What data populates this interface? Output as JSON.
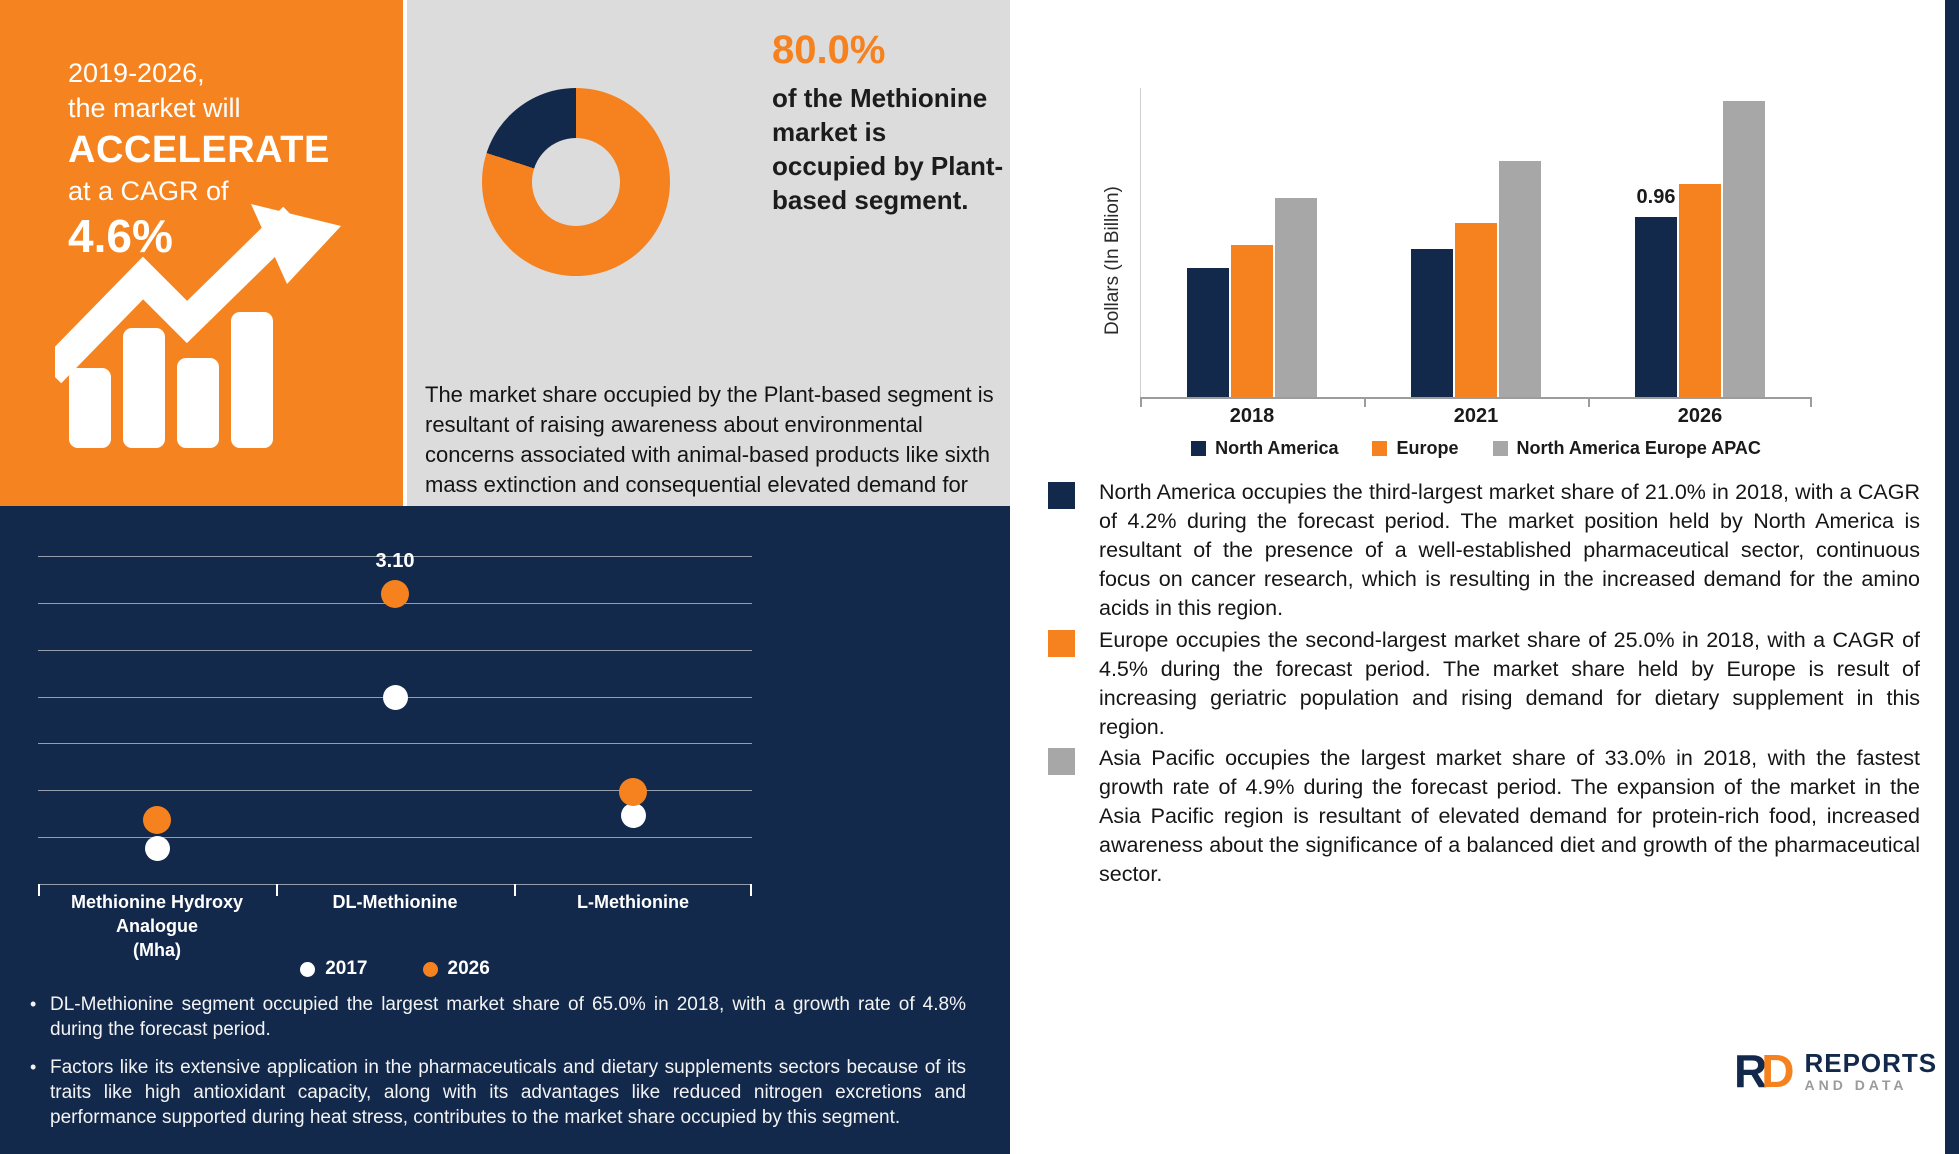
{
  "palette": {
    "orange": "#F5821F",
    "navy": "#13294B",
    "panel_gray": "#DCDCDC",
    "bar_gray": "#A7A7A7"
  },
  "accelerate_panel": {
    "period": "2019-2026,",
    "line2": "the market will",
    "highlight": "ACCELERATE",
    "line4": "at a CAGR of",
    "cagr": "4.6%"
  },
  "donut_panel": {
    "stat_value": "80.0%",
    "stat_caption": "of the Methionine market is occupied by Plant-based segment.",
    "body": "The market share occupied by the Plant-based segment is resultant of raising awareness about environmental concerns associated with animal-based products like sixth mass extinction and consequential elevated demand for bio-based products."
  },
  "segment_panel": {
    "categories_display": [
      "Methionine Hydroxy Analogue\n(Mha)",
      "DL-Methionine",
      "L-Methionine"
    ],
    "bullets": [
      "DL-Methionine segment occupied the largest market share of 65.0% in 2018, with a growth rate of 4.8% during the forecast period.",
      "Factors like its extensive application in the pharmaceuticals and dietary supplements sectors because of its traits like high antioxidant capacity, along with its advantages like reduced nitrogen excretions and performance supported during heat stress, contributes to the market share occupied by this segment."
    ]
  },
  "regional_panel": {
    "notes": [
      {
        "color": "#13294B",
        "text": "North America occupies the third-largest market share of 21.0% in 2018, with a CAGR of 4.2% during the forecast period. The market position held by North America is resultant of the presence of a well-established pharmaceutical sector, continuous focus on cancer research, which is resulting in the increased demand for the amino acids in this region."
      },
      {
        "color": "#F5821F",
        "text": "Europe occupies the second-largest market share of 25.0% in 2018, with a CAGR of 4.5% during the forecast period. The market share held by Europe is result of increasing geriatric population and rising demand for dietary supplement in this region."
      },
      {
        "color": "#A7A7A7",
        "text": "Asia Pacific occupies the largest market share of 33.0% in 2018, with the fastest growth rate of 4.9% during the forecast period. The expansion of the market in the Asia Pacific region is resultant of elevated demand for protein-rich food, increased awareness about the significance of a balanced diet and growth of the pharmaceutical sector."
      }
    ]
  },
  "logo": {
    "mark_r": "R",
    "mark_d": "D",
    "title": "REPORTS",
    "subtitle": "AND DATA"
  },
  "chart_data": [
    {
      "id": "plant-based-donut",
      "type": "pie",
      "labels": [
        "Plant-based",
        "Other segments"
      ],
      "values": [
        80.0,
        20.0
      ],
      "colors": [
        "#F5821F",
        "#13294B"
      ],
      "donut": true
    },
    {
      "id": "segment-dot-plot",
      "type": "scatter",
      "categories": [
        "Methionine Hydroxy Analogue (Mha)",
        "DL-Methionine",
        "L-Methionine"
      ],
      "series": [
        {
          "name": "2017",
          "color": "#FFFFFF",
          "values": [
            0.4,
            2.0,
            0.75
          ]
        },
        {
          "name": "2026",
          "color": "#F5821F",
          "values": [
            0.7,
            3.1,
            1.0
          ]
        }
      ],
      "ylim": [
        0,
        3.5
      ],
      "gridlines": 8,
      "grid": true,
      "legend_position": "bottom",
      "data_labels": [
        {
          "series": "2026",
          "category": "DL-Methionine",
          "text": "3.10"
        }
      ]
    },
    {
      "id": "regional-bar-chart",
      "type": "bar",
      "ylabel": "Dollars (In Billion)",
      "categories": [
        "2018",
        "2021",
        "2026"
      ],
      "series": [
        {
          "name": "North America",
          "color": "#13294B",
          "values": [
            0.69,
            0.79,
            0.96
          ]
        },
        {
          "name": "Europe",
          "color": "#F5821F",
          "values": [
            0.81,
            0.93,
            1.14
          ]
        },
        {
          "name": "North America Europe APAC",
          "color": "#A7A7A7",
          "values": [
            1.06,
            1.26,
            1.58
          ]
        }
      ],
      "ylim": [
        0,
        1.65
      ],
      "grid": false,
      "legend_position": "bottom",
      "data_labels": [
        {
          "series": "North America",
          "category": "2026",
          "text": "0.96"
        }
      ]
    }
  ]
}
